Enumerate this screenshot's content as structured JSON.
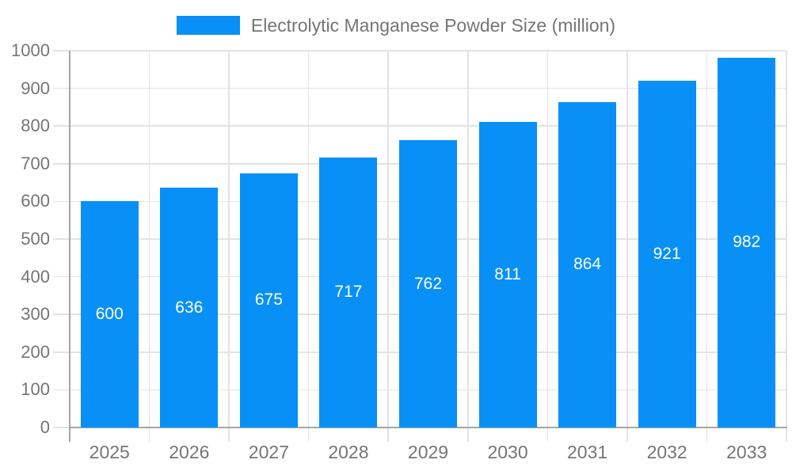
{
  "chart_data": {
    "type": "bar",
    "title": "Electrolytic Manganese Powder Size (million)",
    "categories": [
      "2025",
      "2026",
      "2027",
      "2028",
      "2029",
      "2030",
      "2031",
      "2032",
      "2033"
    ],
    "values": [
      600,
      636,
      675,
      717,
      762,
      811,
      864,
      921,
      982
    ],
    "yticks": [
      0,
      100,
      200,
      300,
      400,
      500,
      600,
      700,
      800,
      900,
      1000
    ],
    "ylim": [
      0,
      1000
    ],
    "xlabel": "",
    "ylabel": "",
    "legend_position": "top",
    "grid": true,
    "bar_color": "#0890f7",
    "value_label_color": "#ffffff",
    "axis_label_color": "#757575",
    "grid_color": "#e3e3e3",
    "axis_line_color": "#a6a6a6",
    "background_color": "#ffffff"
  }
}
